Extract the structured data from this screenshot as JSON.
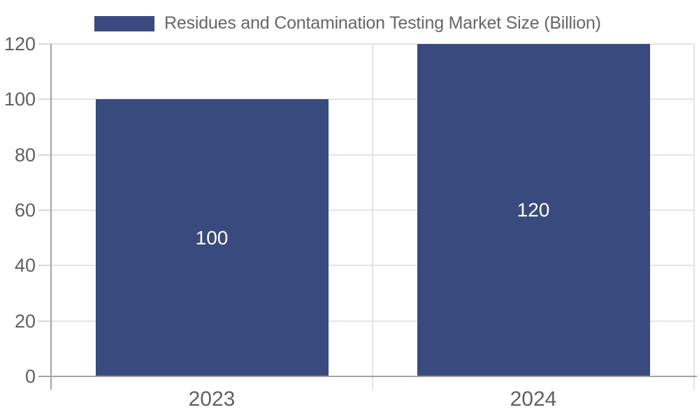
{
  "chart_data": {
    "type": "bar",
    "title": "",
    "categories": [
      "2023",
      "2024"
    ],
    "series": [
      {
        "name": "Residues and Contamination Testing Market Size (Billion)",
        "values": [
          100,
          120
        ],
        "color": "#394A7E"
      }
    ],
    "value_labels": [
      "100",
      "120"
    ],
    "value_label_position": "inside-center",
    "legend": {
      "label": "Residues and Contamination Testing Market Size (Billion)",
      "position": "top-center",
      "swatch_color": "#394A7E"
    },
    "xlabel": "",
    "ylabel": "",
    "ylim": [
      0,
      120
    ],
    "yticks": [
      0,
      20,
      40,
      60,
      80,
      100,
      120
    ],
    "grid": true,
    "background": "#ffffff"
  },
  "colors": {
    "bar": "#394A7E",
    "axis_line": "#a3a3a3",
    "grid_line": "#e4e4e4",
    "tick_mark": "#d8d8d8",
    "axis_text": "#606060",
    "legend_text": "#666666",
    "value_text": "#ffffff"
  }
}
